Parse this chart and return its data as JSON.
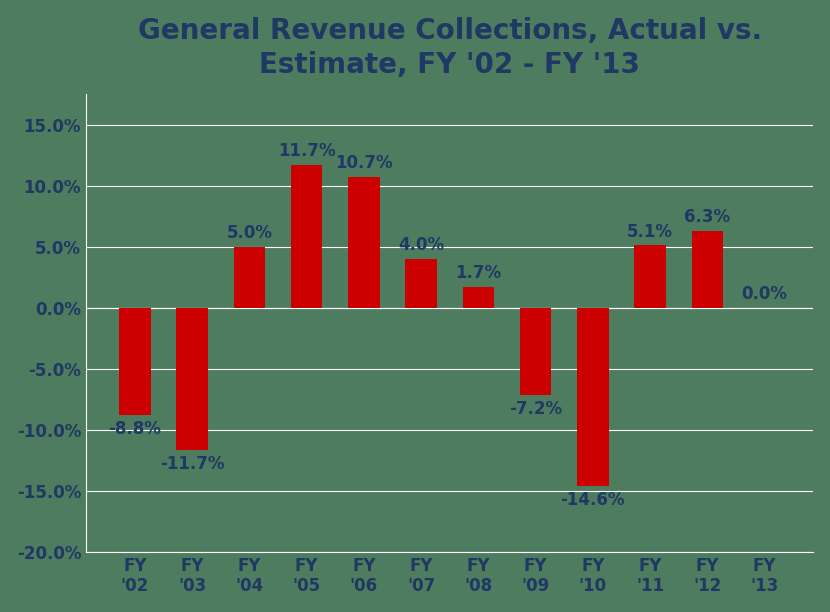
{
  "title": "General Revenue Collections, Actual vs.\nEstimate, FY '02 - FY '13",
  "categories": [
    "FY\n'02",
    "FY\n'03",
    "FY\n'04",
    "FY\n'05",
    "FY\n'06",
    "FY\n'07",
    "FY\n'08",
    "FY\n'09",
    "FY\n'10",
    "FY\n'11",
    "FY\n'12",
    "FY\n'13"
  ],
  "values": [
    -8.8,
    -11.7,
    5.0,
    11.7,
    10.7,
    4.0,
    1.7,
    -7.2,
    -14.6,
    5.1,
    6.3,
    0.0
  ],
  "bar_color": "#CC0000",
  "title_color": "#1F3864",
  "label_color": "#1F3864",
  "axis_label_color": "#1F3864",
  "background_color": "#4E7C5F",
  "plot_area_color": "#4E7C5F",
  "figure_bg_color": "#4E7C5F",
  "grid_color": "#FFFFFF",
  "ylim": [
    -20.0,
    17.5
  ],
  "yticks": [
    -20.0,
    -15.0,
    -10.0,
    -5.0,
    0.0,
    5.0,
    10.0,
    15.0
  ],
  "title_fontsize": 20,
  "bar_label_fontsize": 12,
  "tick_label_fontsize": 12
}
